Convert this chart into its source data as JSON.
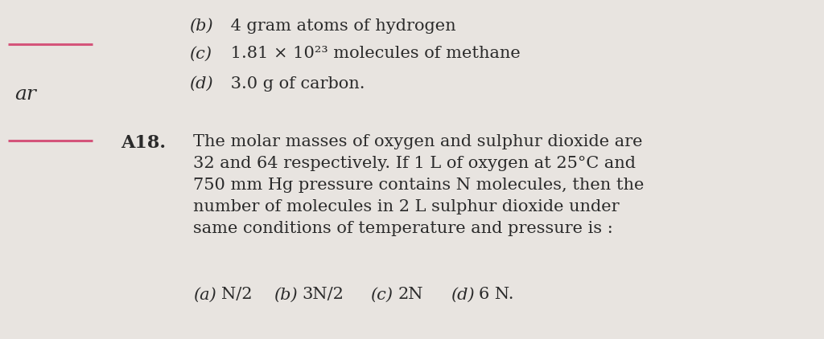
{
  "background_color": "#e8e4e0",
  "line_color": "#d4547a",
  "text_color": "#2a2a2a",
  "left_letter": "ar",
  "font_size": 15,
  "font_size_bold": 16,
  "items_top": [
    {
      "label": "(b)",
      "text": " 4 gram atoms of hydrogen"
    },
    {
      "label": "(c)",
      "text": " 1.81 × 10²³ molecules of methane"
    },
    {
      "label": "(d)",
      "text": " 3.0 g of carbon."
    }
  ],
  "question_label": "A18.",
  "question_lines": [
    "The molar masses of oxygen and sulphur dioxide are",
    "32 and 64 respectively. If 1 L of oxygen at 25°C and",
    "750 mm Hg pressure contains N molecules, then the",
    "number of molecules in 2 L sulphur dioxide under",
    "same conditions of temperature and pressure is :"
  ],
  "answer_labels": [
    "(a)",
    "(b)",
    "(c)",
    "(d)"
  ],
  "answer_texts": [
    "N/2",
    "3N/2",
    "2N",
    "6 N."
  ]
}
